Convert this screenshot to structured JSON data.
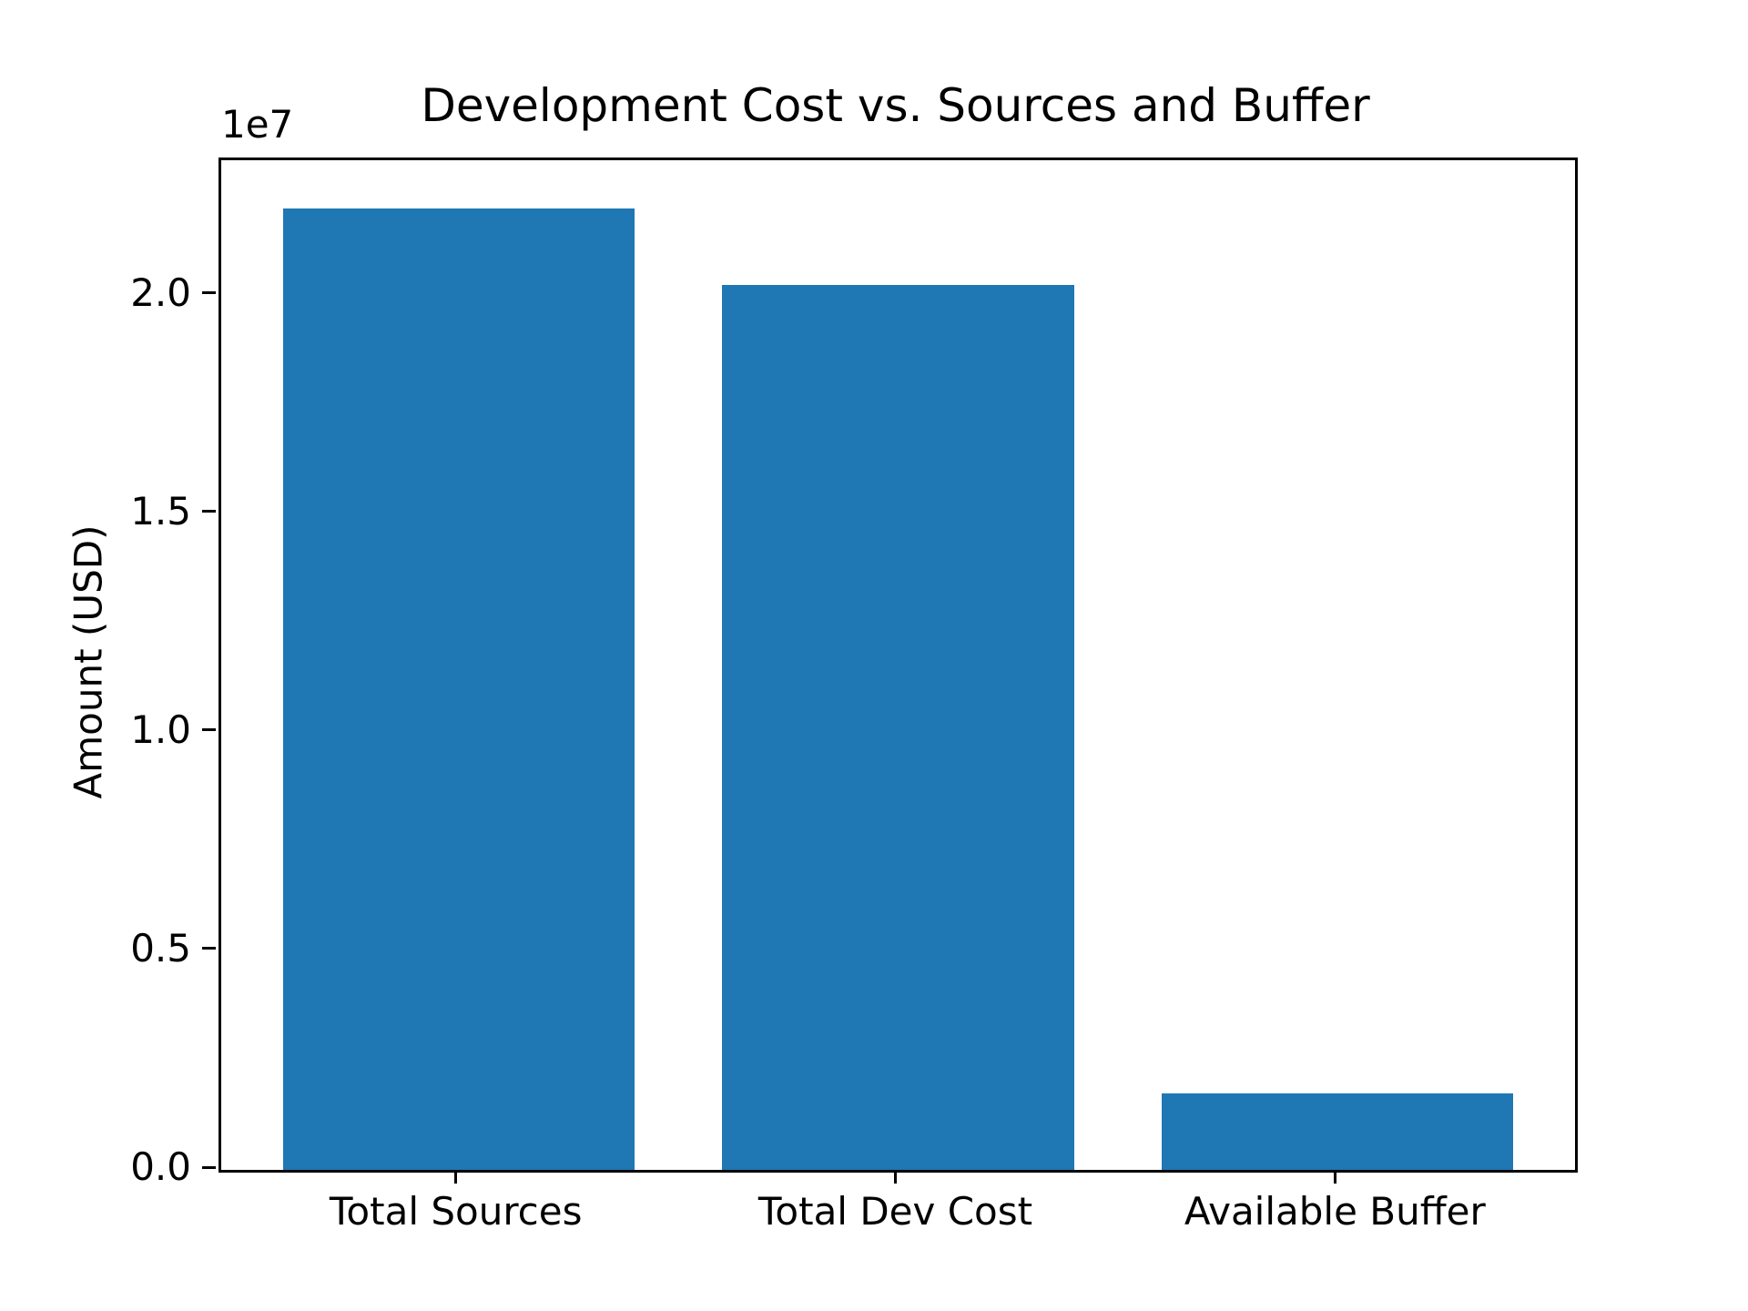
{
  "chart_data": {
    "type": "bar",
    "title": "Development Cost vs. Sources and Buffer",
    "ylabel": "Amount (USD)",
    "xlabel": "",
    "y_offset_label": "1e7",
    "categories": [
      "Total Sources",
      "Total Dev Cost",
      "Available Buffer"
    ],
    "values": [
      22000000,
      20250000,
      1750000
    ],
    "bar_color": "#1f77b4",
    "axis_color": "#000000",
    "background_color": "#ffffff",
    "ylim": [
      0,
      23100000
    ],
    "xlim": [
      -0.54,
      2.54
    ],
    "bar_width": 0.8,
    "grid": false,
    "legend": "none",
    "yticks": [
      {
        "value": 0,
        "label": "0.0"
      },
      {
        "value": 5000000,
        "label": "0.5"
      },
      {
        "value": 10000000,
        "label": "1.0"
      },
      {
        "value": 15000000,
        "label": "1.5"
      },
      {
        "value": 20000000,
        "label": "2.0"
      }
    ]
  }
}
